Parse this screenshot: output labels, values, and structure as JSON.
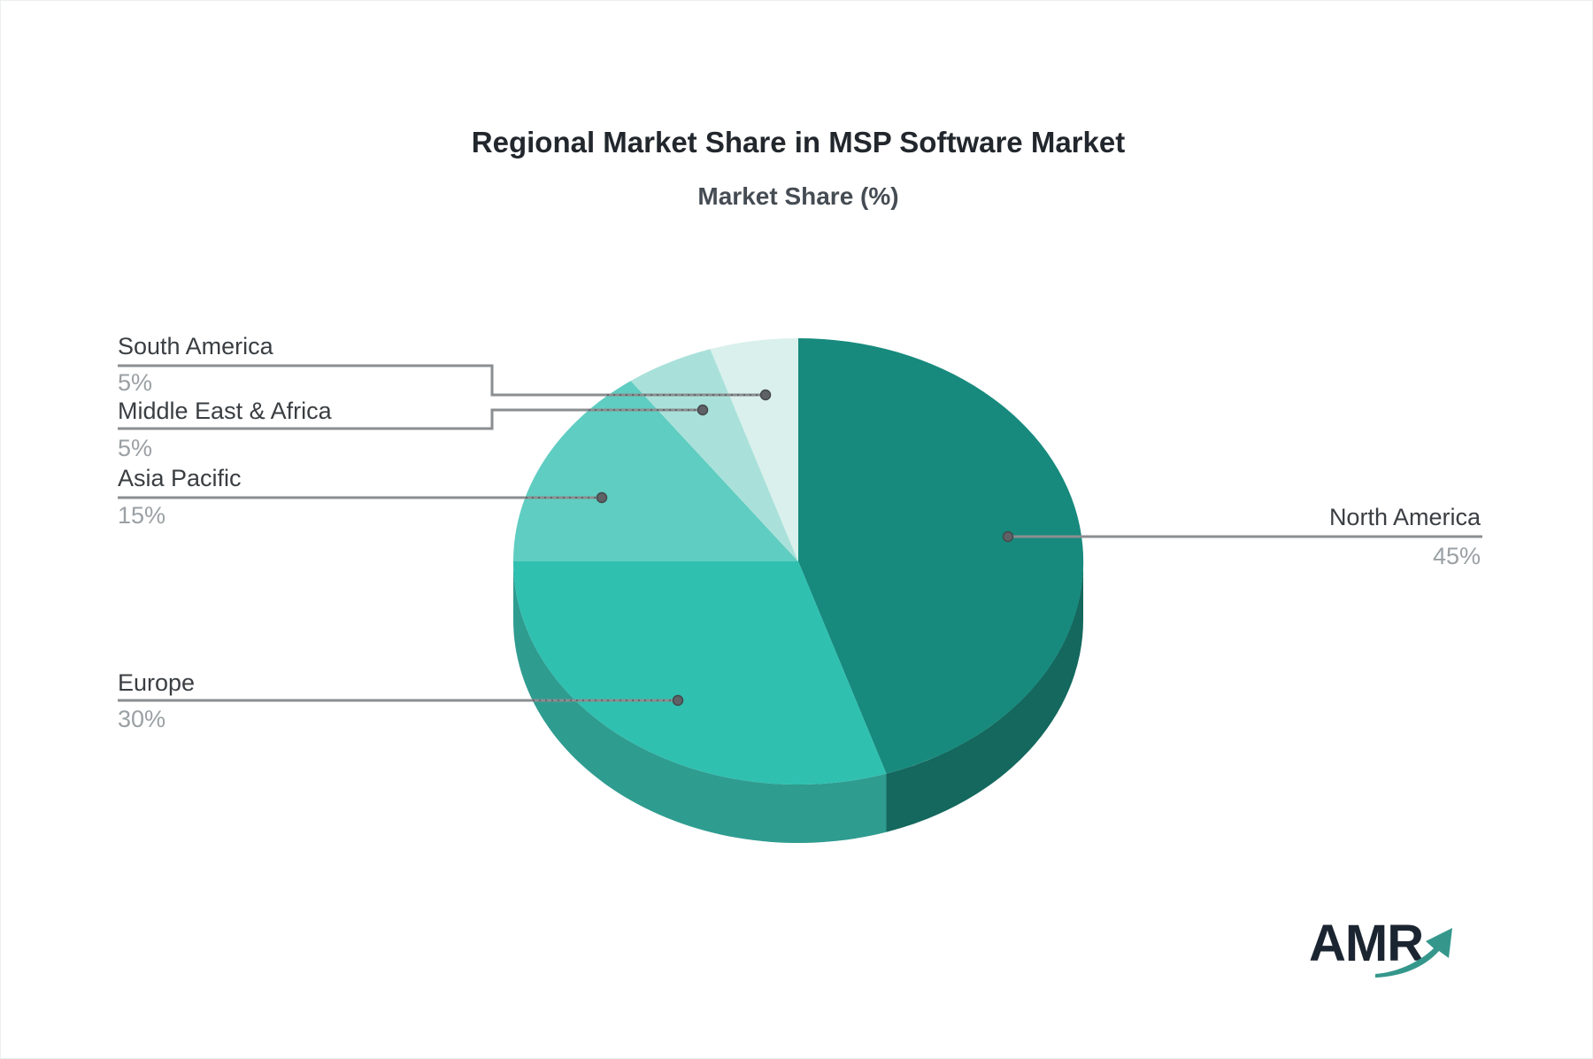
{
  "title": "Regional Market Share in MSP Software Market",
  "subtitle": "Market Share (%)",
  "chart_data": {
    "type": "pie",
    "title": "Regional Market Share in MSP Software Market",
    "subtitle": "Market Share (%)",
    "unit": "%",
    "categories": [
      "North America",
      "Europe",
      "Asia Pacific",
      "Middle East & Africa",
      "South America"
    ],
    "values": [
      45,
      30,
      15,
      5,
      5
    ],
    "labels": [
      "45%",
      "30%",
      "15%",
      "5%",
      "5%"
    ],
    "colors": [
      "#178A7D",
      "#2FC0B0",
      "#5FCDC1",
      "#A9E1DA",
      "#D9F0EC"
    ],
    "side_colors": [
      "#14685E",
      "#2F9C90",
      "#4CB9AD",
      "#8FD2C9",
      "#C5E8E2"
    ],
    "start_angle_deg": 0,
    "direction": "clockwise",
    "style": "3d-depth",
    "legend_position": "callout-labels",
    "leader_line_color": "#8b8e90",
    "label_color": "#3a3e42",
    "value_color": "#9aa0a4"
  },
  "logo": {
    "text": "AMR",
    "text_color": "#1b2531",
    "arrow_color": "#35978c"
  }
}
